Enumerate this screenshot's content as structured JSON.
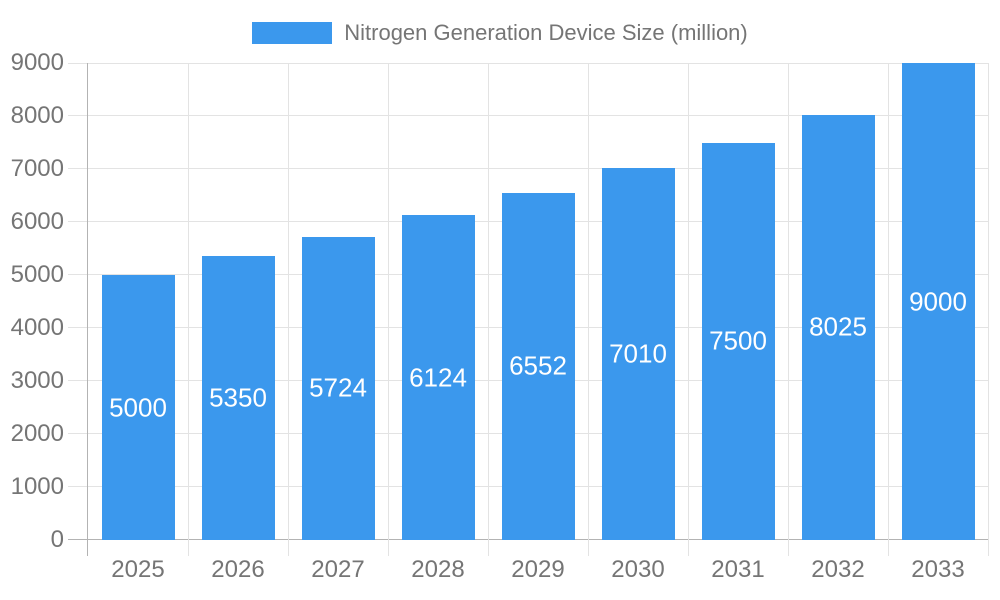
{
  "chart_data": {
    "type": "bar",
    "title": "",
    "legend_label": "Nitrogen Generation Device Size (million)",
    "legend_position": "top",
    "categories": [
      "2025",
      "2026",
      "2027",
      "2028",
      "2029",
      "2030",
      "2031",
      "2032",
      "2033"
    ],
    "values": [
      5000,
      5350,
      5724,
      6124,
      6552,
      7010,
      7500,
      8025,
      9000
    ],
    "value_labels": [
      "5000",
      "5350",
      "5724",
      "6124",
      "6552",
      "7010",
      "7500",
      "8025",
      "9000"
    ],
    "ytick_labels": [
      "0",
      "1000",
      "2000",
      "3000",
      "4000",
      "5000",
      "6000",
      "7000",
      "8000",
      "9000"
    ],
    "xlabel": "",
    "ylabel": "",
    "ylim": [
      0,
      9000
    ],
    "ytick_step": 1000,
    "grid": true,
    "value_labels_inside": true
  },
  "colors": {
    "bar": "#3B98ED",
    "grid": "#E3E3E3",
    "axis": "#B3B3B3",
    "axis_text": "#757575",
    "legend_text": "#757575",
    "bar_label_text": "#FFFFFF",
    "background": "#FFFFFF"
  }
}
